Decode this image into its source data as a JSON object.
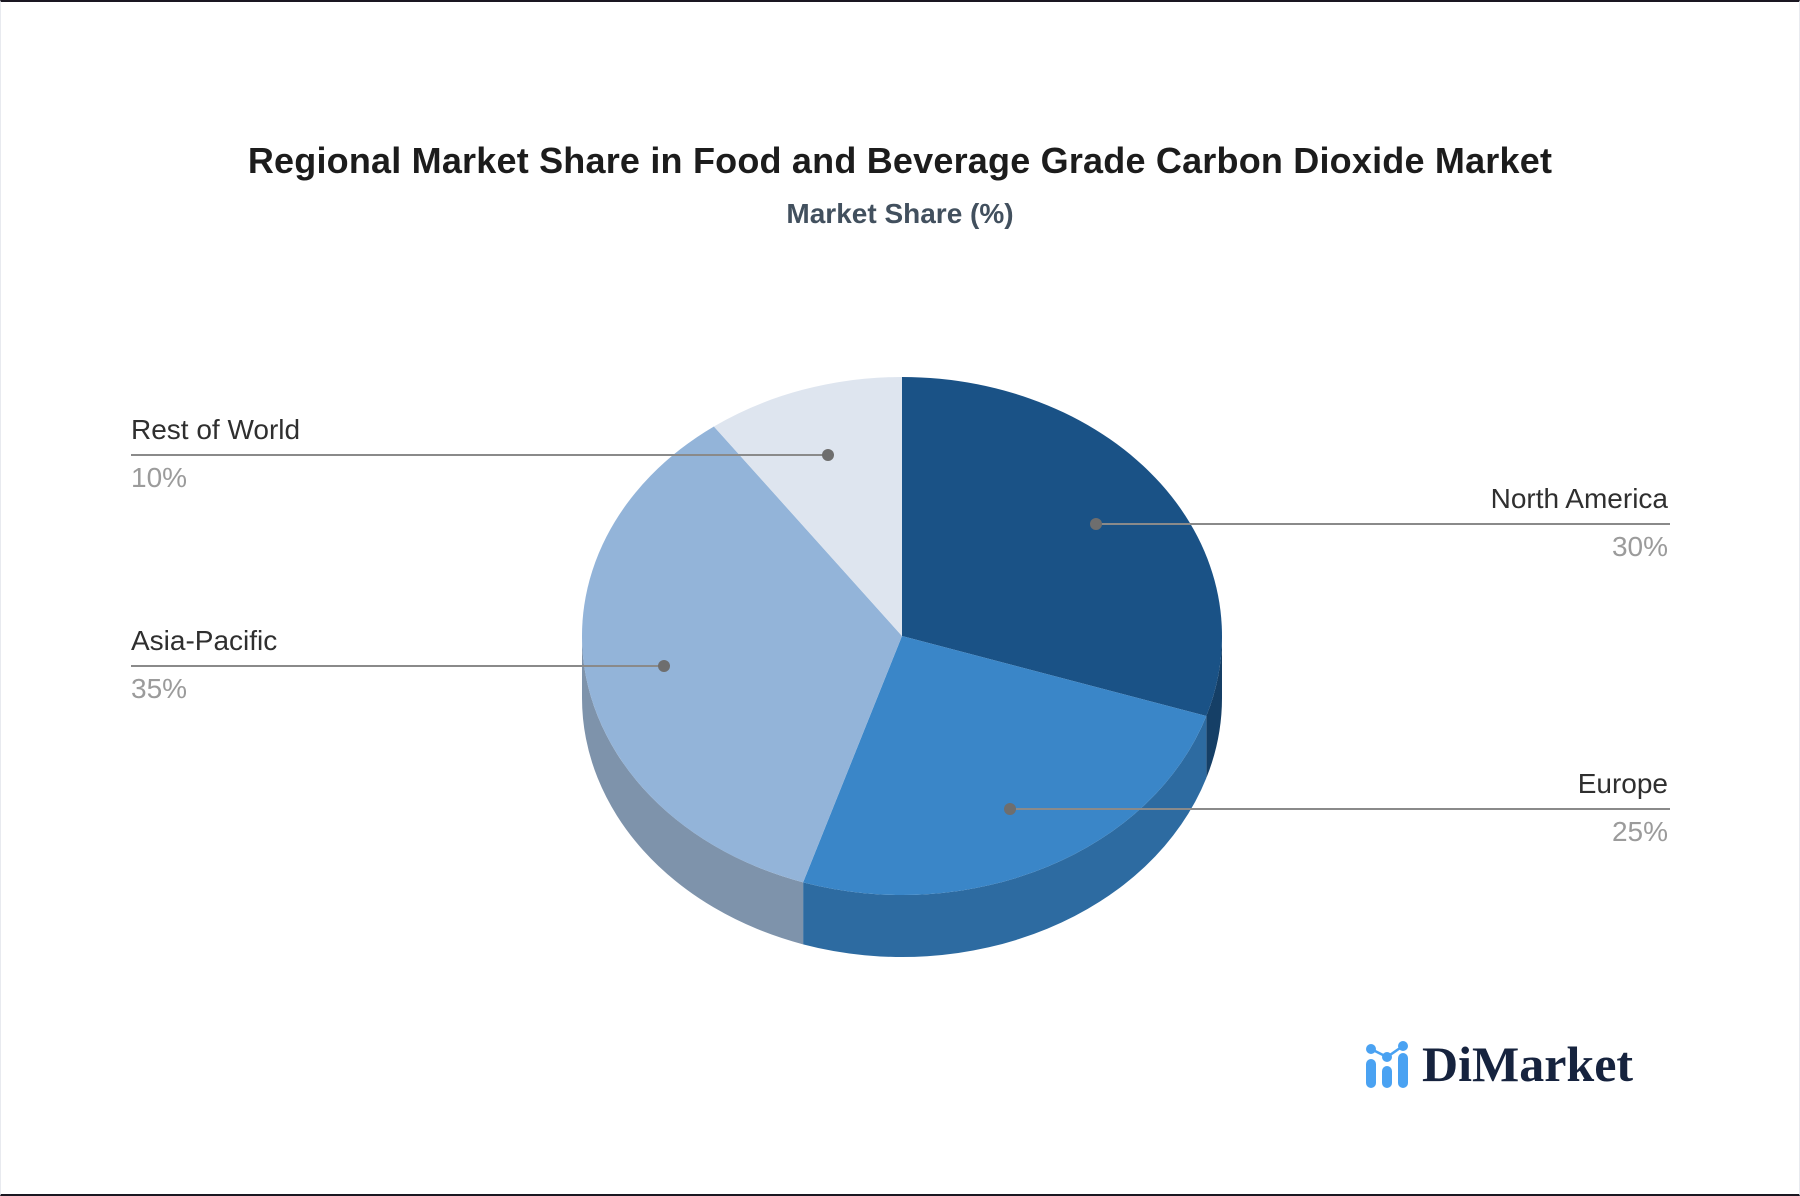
{
  "title": "Regional Market Share in Food and Beverage Grade Carbon Dioxide Market",
  "subtitle": "Market Share (%)",
  "background_color": "#ffffff",
  "chart_data": {
    "type": "pie",
    "title": "Regional Market Share in Food and Beverage Grade Carbon Dioxide Market",
    "subtitle": "Market Share (%)",
    "unit": "%",
    "style": "3d-pie",
    "start_angle_deg": 0,
    "direction": "clockwise",
    "legend_position": "callout-labels",
    "callout_line_color": "#8a8a8a",
    "callout_dot_color": "#6e6e6e",
    "label_text_color": "#2f2f2f",
    "percent_text_color": "#9b9b9b",
    "slices": [
      {
        "label": "North America",
        "value": 30,
        "pct_label": "30%",
        "color": "#1a5286",
        "side_color": "#153f66"
      },
      {
        "label": "Europe",
        "value": 25,
        "pct_label": "25%",
        "color": "#3a86c8",
        "side_color": "#2d6ba1"
      },
      {
        "label": "Asia-Pacific",
        "value": 35,
        "pct_label": "35%",
        "color": "#93b4d9",
        "side_color": "#7e93ab"
      },
      {
        "label": "Rest of World",
        "value": 10,
        "pct_label": "10%",
        "color": "#dee5ef",
        "side_color": "#bcc8d6"
      }
    ]
  },
  "branding": {
    "logo_text": "DiMarket",
    "logo_icon": "bar-chart-logo-icon",
    "logo_text_color": "#16233e",
    "logo_icon_color": "#4aa2f2"
  }
}
